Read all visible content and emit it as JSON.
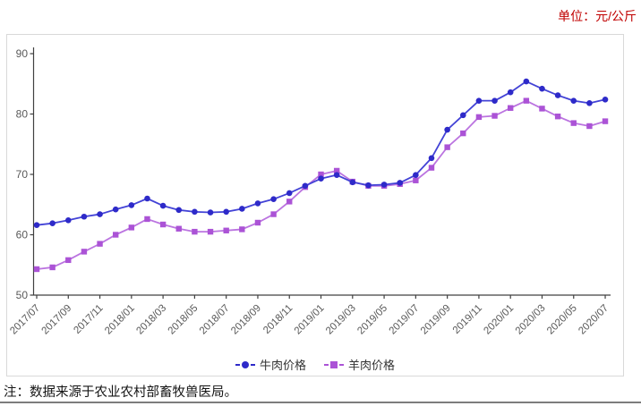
{
  "page": {
    "unit_label": "单位：元/公斤",
    "note": "注：数据来源于农业农村部畜牧兽医局。"
  },
  "colors": {
    "unit_text": "#c00000",
    "axis_line": "#404040",
    "axis_text": "#595959",
    "legend_text": "#333333",
    "chart_border": "#d9d9d9",
    "divider": "#7d7d7d",
    "beef_line": "#4343d6",
    "beef_marker": "#2e2ac9",
    "mutton_line": "#bb74e0",
    "mutton_marker": "#ab53d6"
  },
  "chart_data": {
    "type": "line",
    "title": "",
    "unit": "元/公斤",
    "grid": false,
    "legend_position": "bottom-center",
    "ylim": [
      50,
      90
    ],
    "y_ticks": [
      50,
      60,
      70,
      80,
      90
    ],
    "x": [
      "2017/07",
      "2017/08",
      "2017/09",
      "2017/10",
      "2017/11",
      "2017/12",
      "2018/01",
      "2018/02",
      "2018/03",
      "2018/04",
      "2018/05",
      "2018/06",
      "2018/07",
      "2018/08",
      "2018/09",
      "2018/10",
      "2018/11",
      "2018/12",
      "2019/01",
      "2019/02",
      "2019/03",
      "2019/04",
      "2019/05",
      "2019/06",
      "2019/07",
      "2019/08",
      "2019/09",
      "2019/10",
      "2019/11",
      "2019/12",
      "2020/01",
      "2020/02",
      "2020/03",
      "2020/04",
      "2020/05",
      "2020/06",
      "2020/07"
    ],
    "x_tick_labels": [
      "2017/07",
      "2017/09",
      "2017/11",
      "2018/01",
      "2018/03",
      "2018/05",
      "2018/07",
      "2018/09",
      "2018/11",
      "2019/01",
      "2019/03",
      "2019/05",
      "2019/07",
      "2019/09",
      "2019/11",
      "2020/01",
      "2020/03",
      "2020/05",
      "2020/07"
    ],
    "series": [
      {
        "name": "牛肉价格",
        "marker": "circle",
        "line_color": "#4343d6",
        "marker_color": "#2e2ac9",
        "values": [
          61.6,
          61.9,
          62.4,
          63.0,
          63.4,
          64.2,
          64.9,
          66.0,
          64.8,
          64.1,
          63.8,
          63.7,
          63.8,
          64.3,
          65.2,
          65.9,
          66.9,
          68.1,
          69.3,
          69.9,
          68.7,
          68.2,
          68.3,
          68.6,
          69.9,
          72.7,
          77.4,
          79.8,
          82.2,
          82.2,
          83.6,
          85.4,
          84.2,
          83.1,
          82.2,
          81.8,
          82.4
        ]
      },
      {
        "name": "羊肉价格",
        "marker": "square",
        "line_color": "#bb74e0",
        "marker_color": "#ab53d6",
        "values": [
          54.3,
          54.6,
          55.8,
          57.2,
          58.5,
          60.0,
          61.2,
          62.6,
          61.7,
          61.0,
          60.5,
          60.5,
          60.7,
          60.9,
          62.0,
          63.4,
          65.5,
          67.9,
          70.0,
          70.6,
          68.8,
          68.1,
          68.1,
          68.4,
          69.0,
          71.1,
          74.5,
          76.8,
          79.5,
          79.7,
          81.0,
          82.2,
          80.9,
          79.6,
          78.5,
          78.0,
          78.8
        ]
      }
    ]
  }
}
